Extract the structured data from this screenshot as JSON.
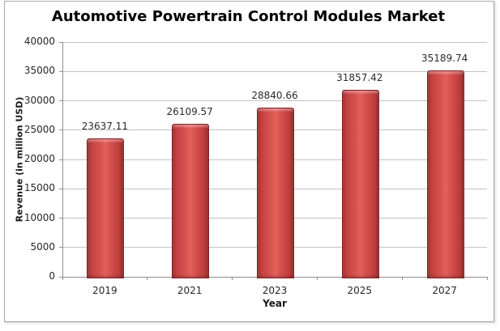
{
  "chart_data": {
    "type": "bar",
    "title": "Automotive Powertrain Control Modules Market",
    "xlabel": "Year",
    "ylabel": "Revenue (in million USD)",
    "categories": [
      "2019",
      "2021",
      "2023",
      "2025",
      "2027"
    ],
    "values": [
      23637.11,
      26109.57,
      28840.66,
      31857.42,
      35189.74
    ],
    "value_labels": [
      "23637.11",
      "26109.57",
      "28840.66",
      "31857.42",
      "35189.74"
    ],
    "ylim": [
      0,
      40000
    ],
    "yticks": [
      0,
      5000,
      10000,
      15000,
      20000,
      25000,
      30000,
      35000,
      40000
    ],
    "grid": "horizontal",
    "legend": "none",
    "bar_color": "#d75250",
    "bar_border_color": "#7f2123",
    "gridline_color": "#c3c3c3",
    "axis_color": "#8f8f8f"
  }
}
